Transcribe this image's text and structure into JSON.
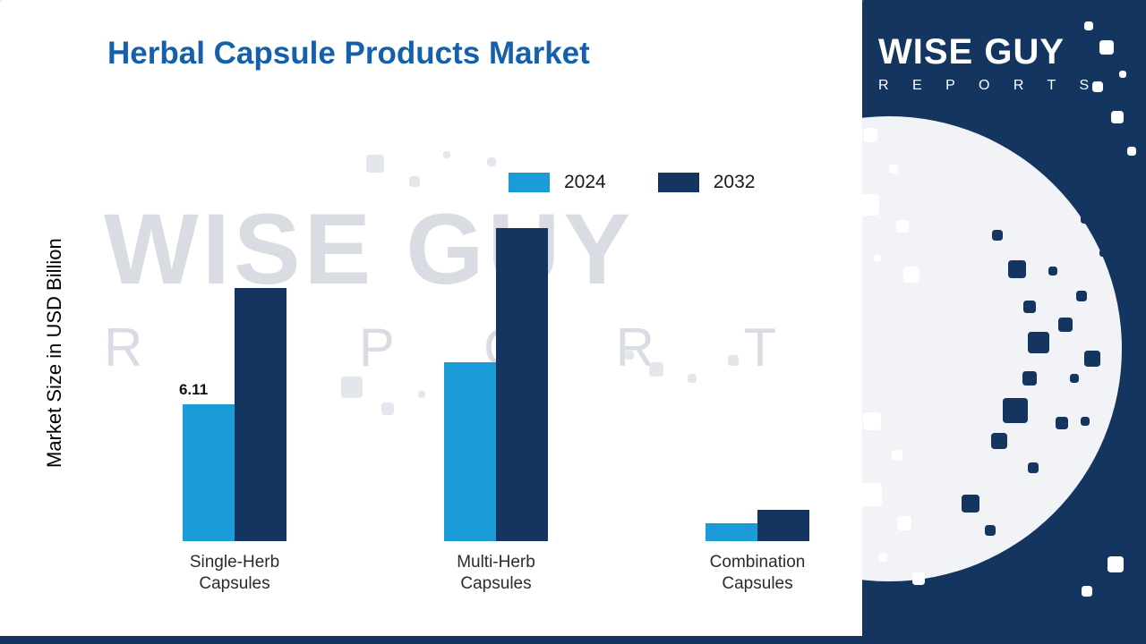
{
  "title": "Herbal Capsule Products Market",
  "ylabel": "Market Size in USD Billion",
  "watermark": {
    "line1": "WISE GUY",
    "line2": "R E P O R T S"
  },
  "logo": {
    "line1": "WISE GUY",
    "line2": "R E P O R T S"
  },
  "colors": {
    "series_2024": "#1b9cd9",
    "series_2032": "#14355f",
    "title_blue": "#1560ab",
    "panel_navy": "#14355f",
    "watermark_gray": "#d9dce3"
  },
  "legend": {
    "items": [
      {
        "label": "2024",
        "color": "#1b9cd9"
      },
      {
        "label": "2032",
        "color": "#14355f"
      }
    ]
  },
  "chart_data": {
    "type": "bar",
    "title": "Herbal Capsule Products Market",
    "xlabel": "",
    "ylabel": "Market Size in USD Billion",
    "ylim": [
      0,
      16
    ],
    "grid": false,
    "legend_position": "top",
    "categories": [
      "Single-Herb Capsules",
      "Multi-Herb Capsules",
      "Combination Capsules"
    ],
    "series": [
      {
        "name": "2024",
        "color": "#1b9cd9",
        "values": [
          6.11,
          8.0,
          0.8
        ]
      },
      {
        "name": "2032",
        "color": "#14355f",
        "values": [
          11.3,
          14.0,
          1.4
        ]
      }
    ],
    "bar_labels": [
      {
        "series": "2024",
        "category_index": 0,
        "text": "6.11"
      }
    ]
  }
}
